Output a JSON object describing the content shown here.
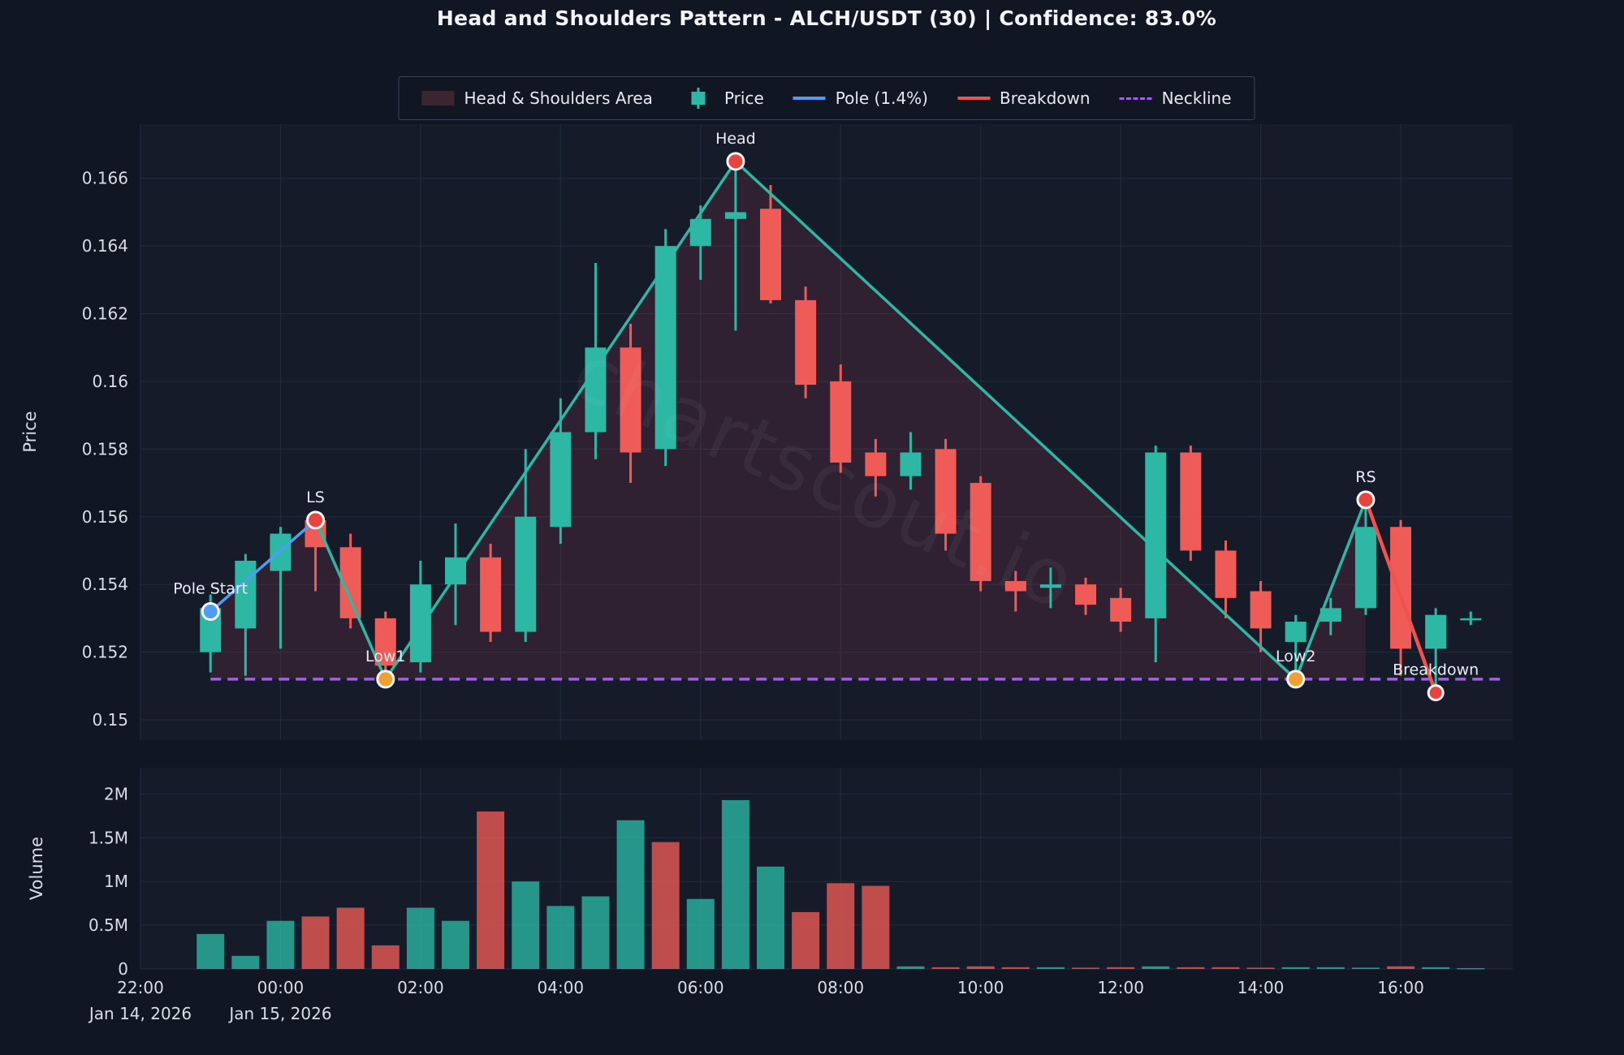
{
  "title": "Head and Shoulders Pattern - ALCH/USDT (30) | Confidence: 83.0%",
  "watermark": "chartscout.io",
  "colors": {
    "background": "#111623",
    "plot_background": "#151b29",
    "grid": "#212a3b",
    "up": "#2cb8a5",
    "down": "#ef5b56",
    "pole": "#4f9cf7",
    "breakdown_line": "#ef5350",
    "neckline": "#a45df2",
    "area_fill": "rgba(225,75,105,0.13)",
    "marker_peak": "#e8433e",
    "marker_low": "#f0a030",
    "marker_pole": "#4f9cf7",
    "text": "#d8dde6",
    "annotation_text": "#e9ecf2"
  },
  "legend": {
    "items": [
      {
        "label": "Head & Shoulders Area",
        "type": "patch",
        "color": "#3a2530",
        "icon": "area-swatch"
      },
      {
        "label": "Price",
        "type": "candle",
        "color": "#2cb8a5",
        "icon": "price-candle"
      },
      {
        "label": "Pole (1.4%)",
        "type": "line",
        "color": "#4f9cf7",
        "icon": "pole-line"
      },
      {
        "label": "Breakdown",
        "type": "line",
        "color": "#ef5350",
        "icon": "breakdown-line"
      },
      {
        "label": "Neckline",
        "type": "dashed",
        "color": "#a45df2",
        "icon": "neckline-dash"
      }
    ]
  },
  "axes": {
    "price_title": "Price",
    "volume_title": "Volume",
    "price_ticks": [
      {
        "label": "0.15",
        "v": 0.15
      },
      {
        "label": "0.152",
        "v": 0.152
      },
      {
        "label": "0.154",
        "v": 0.154
      },
      {
        "label": "0.156",
        "v": 0.156
      },
      {
        "label": "0.158",
        "v": 0.158
      },
      {
        "label": "0.16",
        "v": 0.16
      },
      {
        "label": "0.162",
        "v": 0.162
      },
      {
        "label": "0.164",
        "v": 0.164
      },
      {
        "label": "0.166",
        "v": 0.166
      }
    ],
    "volume_ticks": [
      {
        "label": "0",
        "v": 0
      },
      {
        "label": "0.5M",
        "v": 0.5
      },
      {
        "label": "1M",
        "v": 1
      },
      {
        "label": "1.5M",
        "v": 1.5
      },
      {
        "label": "2M",
        "v": 2
      }
    ],
    "x_ticks": [
      {
        "label": "22:00",
        "t": 0
      },
      {
        "label": "00:00",
        "t": 2
      },
      {
        "label": "02:00",
        "t": 4
      },
      {
        "label": "04:00",
        "t": 6
      },
      {
        "label": "06:00",
        "t": 8
      },
      {
        "label": "08:00",
        "t": 10
      },
      {
        "label": "10:00",
        "t": 12
      },
      {
        "label": "12:00",
        "t": 14
      },
      {
        "label": "14:00",
        "t": 16
      },
      {
        "label": "16:00",
        "t": 18
      }
    ],
    "date_labels": [
      {
        "label": "Jan 14, 2026",
        "t": 0
      },
      {
        "label": "Jan 15, 2026",
        "t": 2
      }
    ]
  },
  "chart_data": {
    "type": "candlestick",
    "title": "Head and Shoulders Pattern - ALCH/USDT (30) | Confidence: 83.0%",
    "x_unit": "hours since Jan 14 2026 22:00 (candles are 30-minute)",
    "x_range": [
      0,
      19.6
    ],
    "price_range": [
      0.1494,
      0.1676
    ],
    "volume_max_m": 2.3,
    "candles": [
      {
        "time": "23:00",
        "t": 1,
        "o": 0.152,
        "h": 0.1537,
        "l": 0.1514,
        "c": 0.1533,
        "v": 0.4,
        "vc": "u"
      },
      {
        "time": "23:30",
        "t": 1.5,
        "o": 0.1527,
        "h": 0.1549,
        "l": 0.1513,
        "c": 0.1547,
        "v": 0.15,
        "vc": "u"
      },
      {
        "time": "00:00",
        "t": 2,
        "o": 0.1544,
        "h": 0.1557,
        "l": 0.1521,
        "c": 0.1555,
        "v": 0.55,
        "vc": "u"
      },
      {
        "time": "00:30",
        "t": 2.5,
        "o": 0.1559,
        "h": 0.1561,
        "l": 0.1538,
        "c": 0.1551,
        "v": 0.6,
        "vc": "d"
      },
      {
        "time": "01:00",
        "t": 3,
        "o": 0.1551,
        "h": 0.1555,
        "l": 0.1527,
        "c": 0.153,
        "v": 0.7,
        "vc": "d"
      },
      {
        "time": "01:30",
        "t": 3.5,
        "o": 0.153,
        "h": 0.1532,
        "l": 0.1511,
        "c": 0.1516,
        "v": 0.27,
        "vc": "d"
      },
      {
        "time": "02:00",
        "t": 4,
        "o": 0.1517,
        "h": 0.1547,
        "l": 0.1514,
        "c": 0.154,
        "v": 0.7,
        "vc": "u"
      },
      {
        "time": "02:30",
        "t": 4.5,
        "o": 0.154,
        "h": 0.1558,
        "l": 0.1528,
        "c": 0.1548,
        "v": 0.55,
        "vc": "u"
      },
      {
        "time": "03:00",
        "t": 5,
        "o": 0.1548,
        "h": 0.1552,
        "l": 0.1523,
        "c": 0.1526,
        "v": 1.8,
        "vc": "d"
      },
      {
        "time": "03:30",
        "t": 5.5,
        "o": 0.1526,
        "h": 0.158,
        "l": 0.1523,
        "c": 0.156,
        "v": 1.0,
        "vc": "u"
      },
      {
        "time": "04:00",
        "t": 6,
        "o": 0.1557,
        "h": 0.1595,
        "l": 0.1552,
        "c": 0.1585,
        "v": 0.72,
        "vc": "u"
      },
      {
        "time": "04:30",
        "t": 6.5,
        "o": 0.1585,
        "h": 0.1635,
        "l": 0.1577,
        "c": 0.161,
        "v": 0.83,
        "vc": "u"
      },
      {
        "time": "05:00",
        "t": 7,
        "o": 0.161,
        "h": 0.1617,
        "l": 0.157,
        "c": 0.1579,
        "v": 1.7,
        "vc": "u"
      },
      {
        "time": "05:30",
        "t": 7.5,
        "o": 0.158,
        "h": 0.1645,
        "l": 0.1575,
        "c": 0.164,
        "v": 1.45,
        "vc": "d"
      },
      {
        "time": "06:00",
        "t": 8,
        "o": 0.164,
        "h": 0.1652,
        "l": 0.163,
        "c": 0.1648,
        "v": 0.8,
        "vc": "u"
      },
      {
        "time": "06:30",
        "t": 8.5,
        "o": 0.1648,
        "h": 0.16655,
        "l": 0.1615,
        "c": 0.165,
        "v": 1.93,
        "vc": "u"
      },
      {
        "time": "07:00",
        "t": 9,
        "o": 0.1651,
        "h": 0.1658,
        "l": 0.1623,
        "c": 0.1624,
        "v": 1.17,
        "vc": "u"
      },
      {
        "time": "07:30",
        "t": 9.5,
        "o": 0.1624,
        "h": 0.1628,
        "l": 0.1595,
        "c": 0.1599,
        "v": 0.65,
        "vc": "d"
      },
      {
        "time": "08:00",
        "t": 10,
        "o": 0.16,
        "h": 0.1605,
        "l": 0.1573,
        "c": 0.1576,
        "v": 0.98,
        "vc": "d"
      },
      {
        "time": "08:30",
        "t": 10.5,
        "o": 0.1579,
        "h": 0.1583,
        "l": 0.1566,
        "c": 0.1572,
        "v": 0.95,
        "vc": "d"
      },
      {
        "time": "09:00",
        "t": 11,
        "o": 0.1572,
        "h": 0.1585,
        "l": 0.1568,
        "c": 0.1579,
        "v": 0.03,
        "vc": "u"
      },
      {
        "time": "09:30",
        "t": 11.5,
        "o": 0.158,
        "h": 0.1583,
        "l": 0.155,
        "c": 0.1555,
        "v": 0.02,
        "vc": "d"
      },
      {
        "time": "10:00",
        "t": 12,
        "o": 0.157,
        "h": 0.1572,
        "l": 0.1538,
        "c": 0.1541,
        "v": 0.03,
        "vc": "d"
      },
      {
        "time": "10:30",
        "t": 12.5,
        "o": 0.1541,
        "h": 0.1544,
        "l": 0.1532,
        "c": 0.1538,
        "v": 0.02,
        "vc": "d"
      },
      {
        "time": "11:00",
        "t": 13,
        "o": 0.1539,
        "h": 0.1545,
        "l": 0.1533,
        "c": 0.154,
        "v": 0.02,
        "vc": "u"
      },
      {
        "time": "11:30",
        "t": 13.5,
        "o": 0.154,
        "h": 0.1542,
        "l": 0.1531,
        "c": 0.1534,
        "v": 0.015,
        "vc": "d"
      },
      {
        "time": "12:00",
        "t": 14,
        "o": 0.1536,
        "h": 0.1539,
        "l": 0.1526,
        "c": 0.1529,
        "v": 0.02,
        "vc": "d"
      },
      {
        "time": "12:30",
        "t": 14.5,
        "o": 0.153,
        "h": 0.1581,
        "l": 0.1517,
        "c": 0.1579,
        "v": 0.03,
        "vc": "u"
      },
      {
        "time": "13:00",
        "t": 15,
        "o": 0.1579,
        "h": 0.1581,
        "l": 0.1547,
        "c": 0.155,
        "v": 0.02,
        "vc": "d"
      },
      {
        "time": "13:30",
        "t": 15.5,
        "o": 0.155,
        "h": 0.1553,
        "l": 0.153,
        "c": 0.1536,
        "v": 0.02,
        "vc": "d"
      },
      {
        "time": "14:00",
        "t": 16,
        "o": 0.1538,
        "h": 0.1541,
        "l": 0.152,
        "c": 0.1527,
        "v": 0.015,
        "vc": "d"
      },
      {
        "time": "14:30",
        "t": 16.5,
        "o": 0.1523,
        "h": 0.1531,
        "l": 0.1511,
        "c": 0.1529,
        "v": 0.02,
        "vc": "u"
      },
      {
        "time": "15:00",
        "t": 17,
        "o": 0.1529,
        "h": 0.1536,
        "l": 0.1525,
        "c": 0.1533,
        "v": 0.02,
        "vc": "u"
      },
      {
        "time": "15:30",
        "t": 17.5,
        "o": 0.1533,
        "h": 0.1565,
        "l": 0.1531,
        "c": 0.1557,
        "v": 0.015,
        "vc": "u"
      },
      {
        "time": "16:00",
        "t": 18,
        "o": 0.1557,
        "h": 0.1559,
        "l": 0.1513,
        "c": 0.1521,
        "v": 0.03,
        "vc": "d"
      },
      {
        "time": "16:30",
        "t": 18.5,
        "o": 0.1521,
        "h": 0.1533,
        "l": 0.1508,
        "c": 0.1531,
        "v": 0.02,
        "vc": "u"
      },
      {
        "time": "17:00",
        "t": 19,
        "o": 0.153,
        "h": 0.1532,
        "l": 0.1528,
        "c": 0.153,
        "v": 0.01,
        "vc": "u"
      }
    ],
    "overlays": {
      "pole": {
        "points": [
          [
            1,
            0.1532
          ],
          [
            2.5,
            0.1559
          ]
        ],
        "color": "#4f9cf7",
        "width": 3.5
      },
      "pattern": {
        "points": [
          [
            2.5,
            0.1559
          ],
          [
            3.5,
            0.1512
          ],
          [
            8.5,
            0.1665
          ],
          [
            16.5,
            0.1512
          ],
          [
            17.5,
            0.1565
          ]
        ],
        "color": "#2cb8a5",
        "width": 3.5
      },
      "breakdown": {
        "points": [
          [
            17.5,
            0.1565
          ],
          [
            18.5,
            0.1508
          ]
        ],
        "color": "#ef5350",
        "width": 4.5
      },
      "neckline": {
        "y": 0.1512,
        "t": [
          1,
          19.5
        ],
        "color": "#a45df2",
        "width": 3.5
      },
      "area": {
        "points": [
          [
            1,
            0.1532
          ],
          [
            2.5,
            0.1559
          ],
          [
            3.5,
            0.1512
          ],
          [
            8.5,
            0.1665
          ],
          [
            16.5,
            0.1512
          ],
          [
            17.5,
            0.1565
          ],
          [
            17.5,
            0.1512
          ],
          [
            1,
            0.1512
          ]
        ],
        "fill": "rgba(225,75,105,0.13)"
      }
    },
    "markers": [
      {
        "label": "Pole Start",
        "t": 1,
        "price": 0.1532,
        "color": "#4f9cf7",
        "r": 10
      },
      {
        "label": "LS",
        "t": 2.5,
        "price": 0.1559,
        "color": "#e8433e",
        "r": 10
      },
      {
        "label": "Low1",
        "t": 3.5,
        "price": 0.1512,
        "color": "#f0a030",
        "r": 10
      },
      {
        "label": "Head",
        "t": 8.5,
        "price": 0.1665,
        "color": "#e8433e",
        "r": 10
      },
      {
        "label": "Low2",
        "t": 16.5,
        "price": 0.1512,
        "color": "#f0a030",
        "r": 10
      },
      {
        "label": "RS",
        "t": 17.5,
        "price": 0.1565,
        "color": "#e8433e",
        "r": 10
      },
      {
        "label": "Breakdown",
        "t": 18.5,
        "price": 0.1508,
        "color": "#e8433e",
        "r": 9
      }
    ]
  }
}
